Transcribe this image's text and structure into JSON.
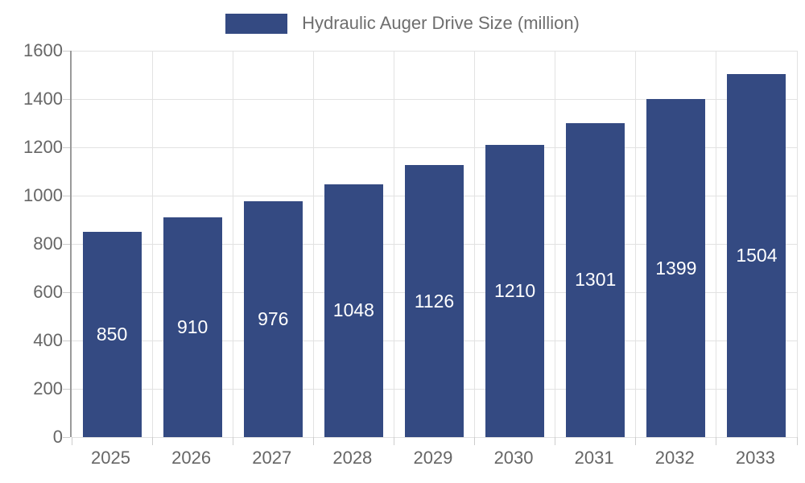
{
  "chart_data": {
    "type": "bar",
    "title": "Hydraulic Auger Drive Size (million)",
    "legend_position": "top",
    "categories": [
      "2025",
      "2026",
      "2027",
      "2028",
      "2029",
      "2030",
      "2031",
      "2032",
      "2033"
    ],
    "values": [
      850,
      910,
      976,
      1048,
      1126,
      1210,
      1301,
      1399,
      1504
    ],
    "xlabel": "",
    "ylabel": "",
    "ylim": [
      0,
      1600
    ],
    "ytick_step": 200,
    "grid": true,
    "colors": {
      "bar": "#344a82",
      "axis_line": "#9a9a9a",
      "gridline": "#e2e2e2",
      "tick": "#cccccc",
      "axis_text": "#666666",
      "legend_text": "#6e6e6e",
      "data_label": "#ffffff",
      "background": "#ffffff"
    }
  }
}
